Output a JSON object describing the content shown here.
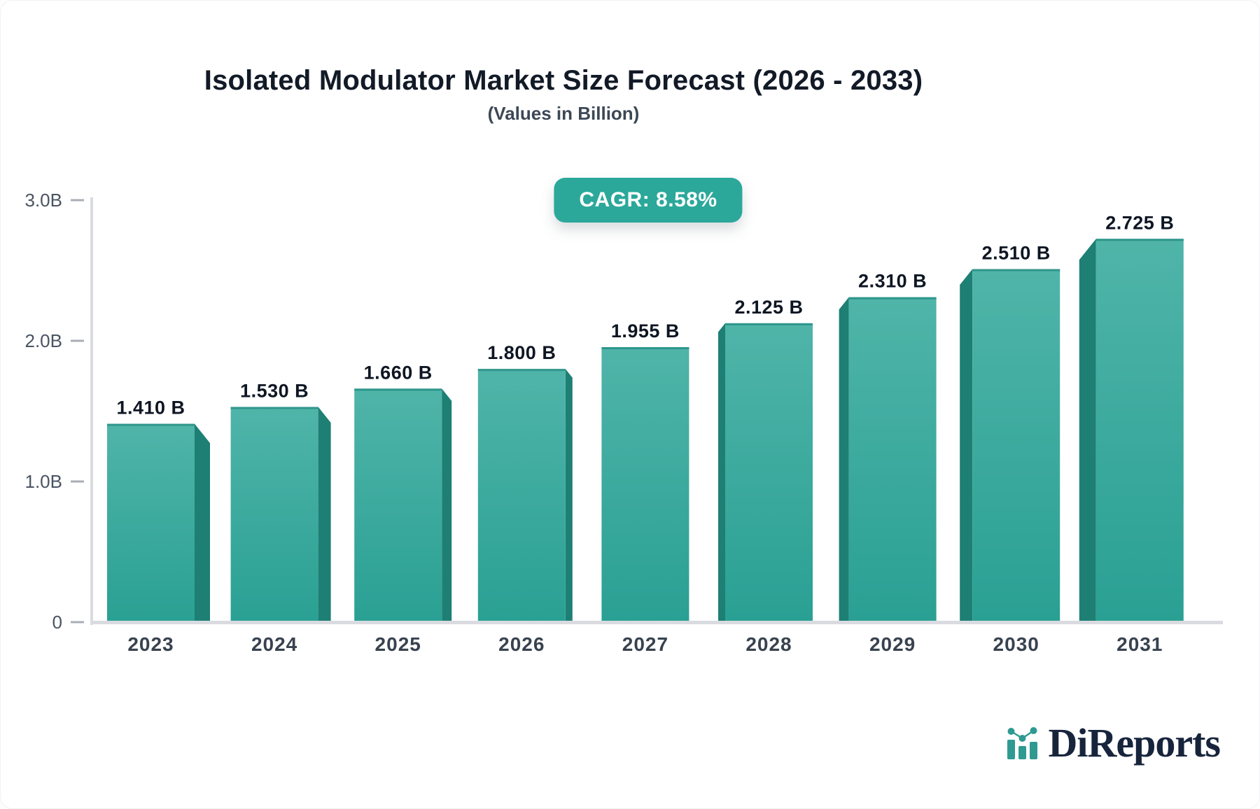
{
  "header": {
    "title": "Isolated Modulator Market Size Forecast (2026 - 2033)",
    "subtitle": "(Values in Billion)"
  },
  "badge": {
    "label": "CAGR: 8.58%"
  },
  "chart_data": {
    "type": "bar",
    "title": "Isolated Modulator Market Size Forecast (2026 - 2033)",
    "subtitle": "(Values in Billion)",
    "unit": "Billion",
    "cagr": "8.58%",
    "categories": [
      "2023",
      "2024",
      "2025",
      "2026",
      "2027",
      "2028",
      "2029",
      "2030",
      "2031"
    ],
    "values": [
      1.41,
      1.53,
      1.66,
      1.8,
      1.955,
      2.125,
      2.31,
      2.51,
      2.725
    ],
    "data_labels": [
      "1.410 B",
      "1.530 B",
      "1.660 B",
      "1.800 B",
      "1.955 B",
      "2.125 B",
      "2.310 B",
      "2.510 B",
      "2.725 B"
    ],
    "xlabel": "",
    "ylabel": "",
    "ylim": [
      0,
      3.0
    ],
    "y_ticks": [
      {
        "value": 0,
        "label": "0"
      },
      {
        "value": 1,
        "label": "1.0B"
      },
      {
        "value": 2,
        "label": "2.0B"
      },
      {
        "value": 3,
        "label": "3.0B"
      }
    ],
    "grid": false,
    "legend_position": "none",
    "colors": {
      "bar_face_top": "#50b4a9",
      "bar_face_bottom": "#29a093",
      "bar_side": "#1e7f74",
      "bar_top_edge": "#2f968c",
      "axis_line": "#d9dbe0",
      "tick_dash": "#a9aeb6",
      "tick_label": "#4a5462",
      "category_label": "#38424f",
      "value_label": "#0e1623",
      "badge_bg": "#2ba89a"
    }
  },
  "logo": {
    "text": "DiReports",
    "icon": "bar-chart-trend-logo-icon",
    "icon_bar_color": "#2e9a92",
    "text_color": "#17243c"
  }
}
